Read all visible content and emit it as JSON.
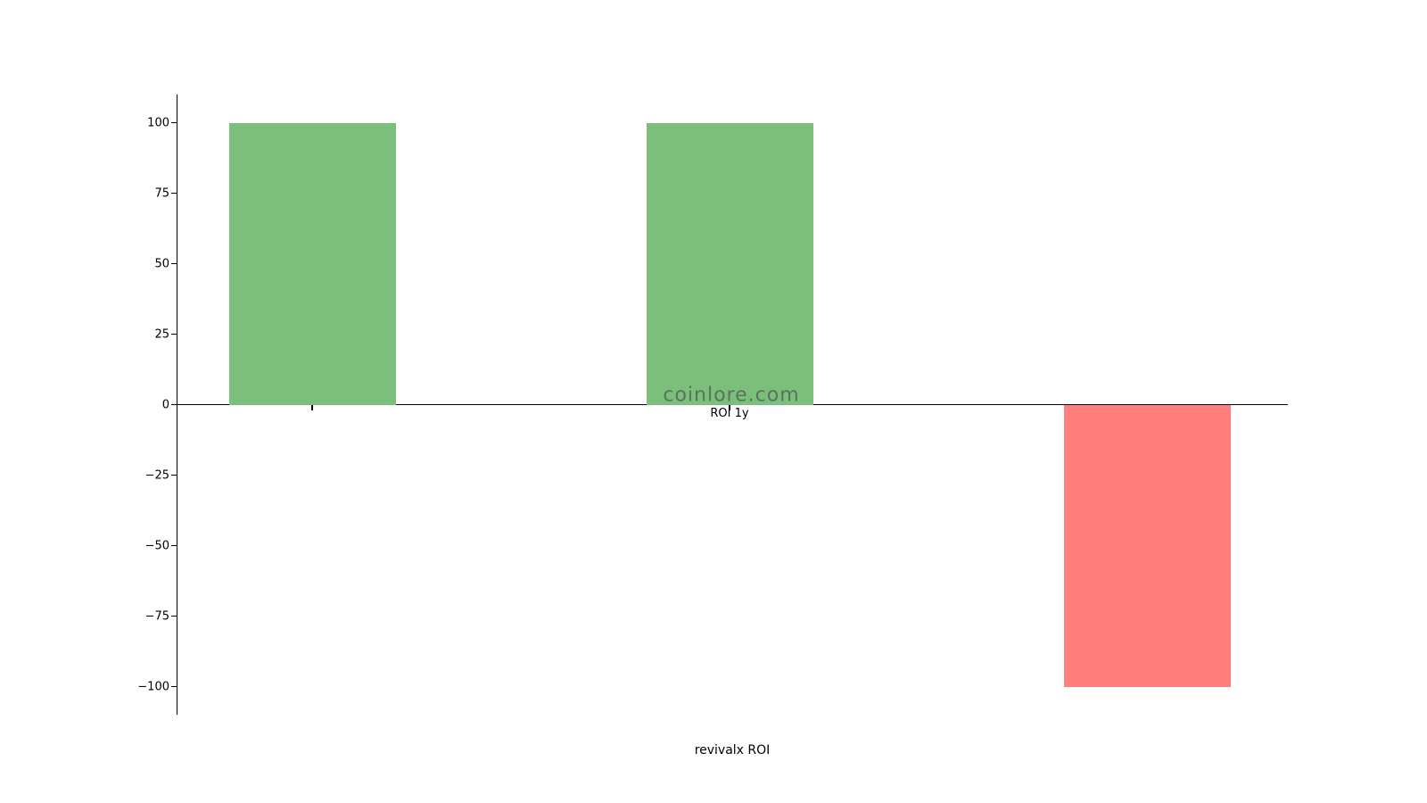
{
  "page": {
    "watermark_text": "coinlore.com"
  },
  "chart_data": {
    "type": "bar",
    "title": "",
    "xlabel": "revivalx ROI",
    "ylabel": "",
    "categories": [
      "",
      "ROI 1y",
      ""
    ],
    "values": [
      100,
      100,
      -100
    ],
    "bar_colors": [
      "#7cbf7c",
      "#7cbf7c",
      "#ff7f7f"
    ],
    "positive_color": "#7cbf7c",
    "negative_color": "#ff7f7f",
    "y_ticks": [
      100,
      75,
      50,
      25,
      0,
      -25,
      -50,
      -75,
      -100
    ],
    "ylim": [
      -110,
      110
    ],
    "grid": false,
    "legend": null,
    "axis_color": "#000000",
    "watermark": "coinlore.com",
    "notes": "x tick labels shown only for middle bar; bottom spine drawn at y=0"
  }
}
